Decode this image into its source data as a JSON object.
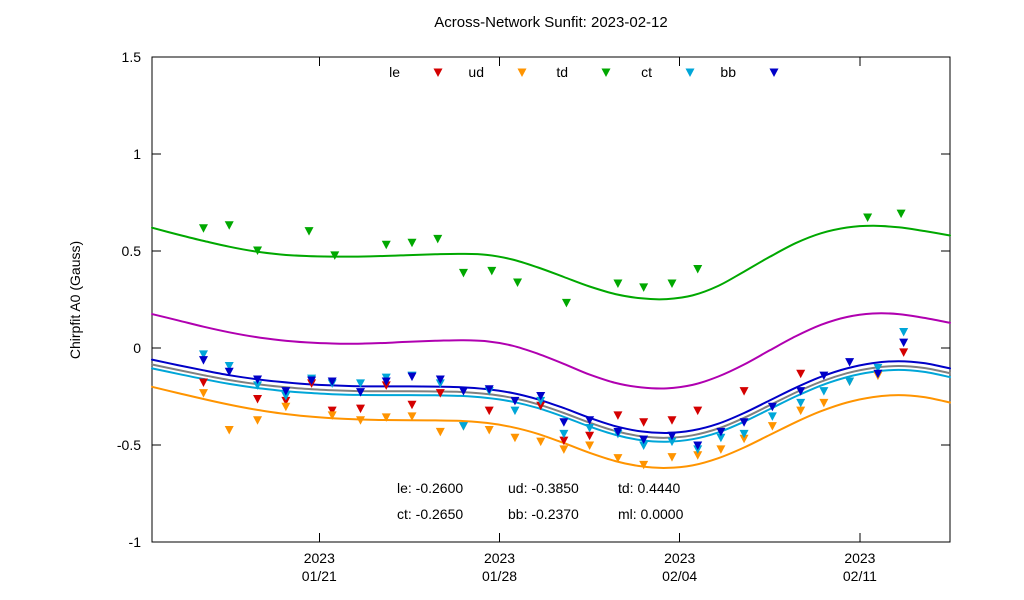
{
  "chart_data": {
    "type": "scatter",
    "title": "Across-Network Sunfit: 2023-02-12",
    "ylabel": "Chirpfit A0 (Gauss)",
    "ylim": [
      -1,
      1.5
    ],
    "xlim_days": [
      0,
      31
    ],
    "grid": false,
    "yticks": [
      {
        "v": -1,
        "label": "-1"
      },
      {
        "v": -0.5,
        "label": "-0.5"
      },
      {
        "v": 0,
        "label": "0"
      },
      {
        "v": 0.5,
        "label": "0.5"
      },
      {
        "v": 1,
        "label": "1"
      },
      {
        "v": 1.5,
        "label": "1.5"
      }
    ],
    "xticks": [
      {
        "d": 6.5,
        "line1": "2023",
        "line2": "01/21"
      },
      {
        "d": 13.5,
        "line1": "2023",
        "line2": "01/28"
      },
      {
        "d": 20.5,
        "line1": "2023",
        "line2": "02/04"
      },
      {
        "d": 27.5,
        "line1": "2023",
        "line2": "02/11"
      }
    ],
    "legend": [
      {
        "name": "le",
        "color": "#d40000"
      },
      {
        "name": "ud",
        "color": "#ff9400"
      },
      {
        "name": "td",
        "color": "#00a800"
      },
      {
        "name": "ct",
        "color": "#00a6d8"
      },
      {
        "name": "bb",
        "color": "#0000c8"
      }
    ],
    "series": [
      {
        "name": "ml",
        "marker_color": null,
        "curve_color": "#b000b0",
        "curve": [
          0.175,
          0.143,
          0.11,
          0.081,
          0.057,
          0.04,
          0.029,
          0.023,
          0.022,
          0.026,
          0.032,
          0.037,
          0.04,
          0.035,
          0.012,
          -0.03,
          -0.082,
          -0.137,
          -0.18,
          -0.203,
          -0.208,
          -0.19,
          -0.147,
          -0.085,
          -0.012,
          0.06,
          0.12,
          0.16,
          0.178,
          0.175,
          0.155,
          0.13
        ],
        "points": []
      },
      {
        "name": "td",
        "marker_color": "#00a800",
        "curve_color": "#00a800",
        "curve": [
          0.62,
          0.585,
          0.552,
          0.522,
          0.498,
          0.482,
          0.474,
          0.471,
          0.471,
          0.474,
          0.479,
          0.483,
          0.485,
          0.48,
          0.456,
          0.415,
          0.366,
          0.317,
          0.278,
          0.256,
          0.252,
          0.271,
          0.32,
          0.394,
          0.47,
          0.54,
          0.592,
          0.621,
          0.63,
          0.622,
          0.603,
          0.58
        ],
        "points": [
          [
            2.0,
            0.62
          ],
          [
            3.0,
            0.635
          ],
          [
            4.1,
            0.505
          ],
          [
            6.1,
            0.605
          ],
          [
            7.1,
            0.48
          ],
          [
            9.1,
            0.535
          ],
          [
            10.1,
            0.545
          ],
          [
            11.1,
            0.565
          ],
          [
            12.1,
            0.39
          ],
          [
            13.2,
            0.4
          ],
          [
            14.2,
            0.34
          ],
          [
            16.1,
            0.235
          ],
          [
            18.1,
            0.335
          ],
          [
            19.1,
            0.315
          ],
          [
            20.2,
            0.335
          ],
          [
            21.2,
            0.41
          ],
          [
            27.8,
            0.675
          ],
          [
            29.1,
            0.695
          ]
        ]
      },
      {
        "name": "ud",
        "marker_color": "#ff9400",
        "curve_color": "#ff9400",
        "curve": [
          -0.2,
          -0.232,
          -0.263,
          -0.292,
          -0.317,
          -0.337,
          -0.352,
          -0.362,
          -0.368,
          -0.371,
          -0.372,
          -0.373,
          -0.376,
          -0.386,
          -0.408,
          -0.443,
          -0.49,
          -0.54,
          -0.583,
          -0.61,
          -0.618,
          -0.605,
          -0.568,
          -0.513,
          -0.448,
          -0.383,
          -0.325,
          -0.281,
          -0.253,
          -0.243,
          -0.253,
          -0.281
        ],
        "points": [
          [
            2.0,
            -0.23
          ],
          [
            3.0,
            -0.42
          ],
          [
            4.1,
            -0.37
          ],
          [
            5.2,
            -0.3
          ],
          [
            7.0,
            -0.345
          ],
          [
            8.1,
            -0.37
          ],
          [
            9.1,
            -0.355
          ],
          [
            10.1,
            -0.35
          ],
          [
            11.2,
            -0.43
          ],
          [
            12.1,
            -0.4
          ],
          [
            13.1,
            -0.42
          ],
          [
            14.1,
            -0.46
          ],
          [
            15.1,
            -0.48
          ],
          [
            16.0,
            -0.52
          ],
          [
            17.0,
            -0.5
          ],
          [
            18.1,
            -0.565
          ],
          [
            19.1,
            -0.6
          ],
          [
            20.2,
            -0.56
          ],
          [
            21.2,
            -0.55
          ],
          [
            22.1,
            -0.52
          ],
          [
            23.0,
            -0.465
          ],
          [
            24.1,
            -0.4
          ],
          [
            25.2,
            -0.32
          ],
          [
            26.1,
            -0.28
          ],
          [
            27.1,
            -0.17
          ],
          [
            28.2,
            -0.14
          ]
        ]
      },
      {
        "name": "le",
        "marker_color": "#d40000",
        "curve_color": "#808080",
        "curve": [
          -0.085,
          -0.113,
          -0.14,
          -0.165,
          -0.185,
          -0.2,
          -0.211,
          -0.218,
          -0.222,
          -0.223,
          -0.223,
          -0.224,
          -0.227,
          -0.237,
          -0.257,
          -0.29,
          -0.335,
          -0.385,
          -0.428,
          -0.455,
          -0.463,
          -0.45,
          -0.415,
          -0.36,
          -0.295,
          -0.23,
          -0.173,
          -0.13,
          -0.103,
          -0.093,
          -0.103,
          -0.13
        ],
        "points": [
          [
            2.0,
            -0.175
          ],
          [
            4.1,
            -0.26
          ],
          [
            5.2,
            -0.27
          ],
          [
            6.2,
            -0.18
          ],
          [
            7.0,
            -0.32
          ],
          [
            8.1,
            -0.31
          ],
          [
            9.1,
            -0.19
          ],
          [
            10.1,
            -0.29
          ],
          [
            11.2,
            -0.23
          ],
          [
            13.1,
            -0.32
          ],
          [
            15.1,
            -0.295
          ],
          [
            16.0,
            -0.475
          ],
          [
            17.0,
            -0.45
          ],
          [
            18.1,
            -0.345
          ],
          [
            19.1,
            -0.38
          ],
          [
            20.2,
            -0.37
          ],
          [
            21.2,
            -0.32
          ],
          [
            23.0,
            -0.22
          ],
          [
            25.2,
            -0.13
          ],
          [
            29.2,
            -0.02
          ]
        ]
      },
      {
        "name": "ct",
        "marker_color": "#00a6d8",
        "curve_color": "#00a6d8",
        "curve": [
          -0.105,
          -0.133,
          -0.16,
          -0.185,
          -0.205,
          -0.22,
          -0.231,
          -0.238,
          -0.242,
          -0.243,
          -0.243,
          -0.244,
          -0.247,
          -0.257,
          -0.277,
          -0.31,
          -0.355,
          -0.405,
          -0.448,
          -0.475,
          -0.483,
          -0.47,
          -0.435,
          -0.38,
          -0.315,
          -0.25,
          -0.193,
          -0.15,
          -0.123,
          -0.113,
          -0.123,
          -0.15
        ],
        "points": [
          [
            2.0,
            -0.03
          ],
          [
            3.0,
            -0.09
          ],
          [
            4.1,
            -0.19
          ],
          [
            5.2,
            -0.245
          ],
          [
            6.2,
            -0.155
          ],
          [
            7.0,
            -0.18
          ],
          [
            8.1,
            -0.18
          ],
          [
            9.1,
            -0.15
          ],
          [
            10.1,
            -0.14
          ],
          [
            11.2,
            -0.18
          ],
          [
            12.1,
            -0.4
          ],
          [
            13.1,
            -0.22
          ],
          [
            14.1,
            -0.32
          ],
          [
            15.1,
            -0.27
          ],
          [
            16.0,
            -0.44
          ],
          [
            17.0,
            -0.41
          ],
          [
            18.1,
            -0.44
          ],
          [
            19.1,
            -0.5
          ],
          [
            20.2,
            -0.48
          ],
          [
            21.2,
            -0.52
          ],
          [
            22.1,
            -0.46
          ],
          [
            23.0,
            -0.44
          ],
          [
            24.1,
            -0.35
          ],
          [
            25.2,
            -0.28
          ],
          [
            26.1,
            -0.22
          ],
          [
            27.1,
            -0.17
          ],
          [
            28.2,
            -0.1
          ],
          [
            29.2,
            0.085
          ]
        ]
      },
      {
        "name": "bb",
        "marker_color": "#0000c8",
        "curve_color": "#0000c8",
        "curve": [
          -0.06,
          -0.088,
          -0.115,
          -0.14,
          -0.16,
          -0.175,
          -0.186,
          -0.193,
          -0.197,
          -0.198,
          -0.198,
          -0.199,
          -0.202,
          -0.212,
          -0.232,
          -0.265,
          -0.31,
          -0.36,
          -0.403,
          -0.43,
          -0.438,
          -0.425,
          -0.39,
          -0.335,
          -0.27,
          -0.205,
          -0.148,
          -0.105,
          -0.078,
          -0.068,
          -0.078,
          -0.105
        ],
        "points": [
          [
            2.0,
            -0.06
          ],
          [
            3.0,
            -0.12
          ],
          [
            4.1,
            -0.16
          ],
          [
            5.2,
            -0.22
          ],
          [
            6.2,
            -0.165
          ],
          [
            7.0,
            -0.17
          ],
          [
            8.1,
            -0.225
          ],
          [
            9.1,
            -0.17
          ],
          [
            10.1,
            -0.145
          ],
          [
            11.2,
            -0.16
          ],
          [
            12.1,
            -0.22
          ],
          [
            13.1,
            -0.21
          ],
          [
            14.1,
            -0.27
          ],
          [
            15.1,
            -0.245
          ],
          [
            16.0,
            -0.38
          ],
          [
            17.0,
            -0.37
          ],
          [
            18.1,
            -0.43
          ],
          [
            19.1,
            -0.47
          ],
          [
            20.2,
            -0.45
          ],
          [
            21.2,
            -0.5
          ],
          [
            22.1,
            -0.43
          ],
          [
            23.0,
            -0.38
          ],
          [
            24.1,
            -0.3
          ],
          [
            25.2,
            -0.22
          ],
          [
            26.1,
            -0.14
          ],
          [
            27.1,
            -0.07
          ],
          [
            28.2,
            -0.13
          ],
          [
            29.2,
            0.03
          ]
        ]
      }
    ],
    "annotation": {
      "rows": [
        [
          "le: -0.2600",
          "ud: -0.3850",
          "td:  0.4440"
        ],
        [
          "ct: -0.2650",
          "bb: -0.2370",
          "ml:  0.0000"
        ]
      ]
    }
  }
}
